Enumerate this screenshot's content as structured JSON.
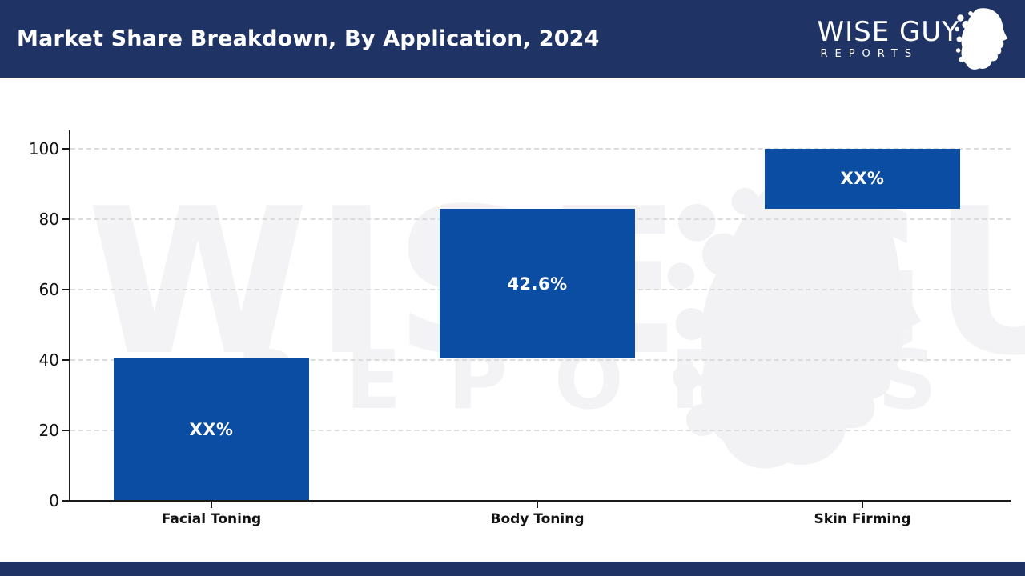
{
  "header": {
    "title": "Market Share Breakdown, By Application, 2024",
    "bg_color": "#203365",
    "title_color": "#ffffff"
  },
  "logo": {
    "line1": "WISE GUY",
    "line2": "REPORTS"
  },
  "watermark": {
    "line1": "WISE GUY",
    "line2": "REPORTS"
  },
  "footer": {
    "bg_color": "#203365"
  },
  "chart_data": {
    "type": "bar",
    "variant": "waterfall-stacked",
    "title": "Market Share Breakdown, By Application, 2024",
    "categories": [
      "Facial Toning",
      "Body Toning",
      "Skin Firming"
    ],
    "segments": [
      {
        "category": "Facial Toning",
        "start": 0,
        "end": 40.4,
        "label": "XX%"
      },
      {
        "category": "Body Toning",
        "start": 40.4,
        "end": 83.0,
        "label": "42.6%"
      },
      {
        "category": "Skin Firming",
        "start": 83.0,
        "end": 100,
        "label": "XX%"
      }
    ],
    "ylim": [
      0,
      100
    ],
    "yticks": [
      0,
      20,
      40,
      60,
      80,
      100
    ],
    "xlabel": "",
    "ylabel": "",
    "grid": "horizontal-dashed",
    "legend": "none",
    "bar_color": "#0b4da2",
    "bar_label_color": "#ffffff",
    "axis_color": "#1a1a1a",
    "gridline_color": "#dcdcdc"
  }
}
